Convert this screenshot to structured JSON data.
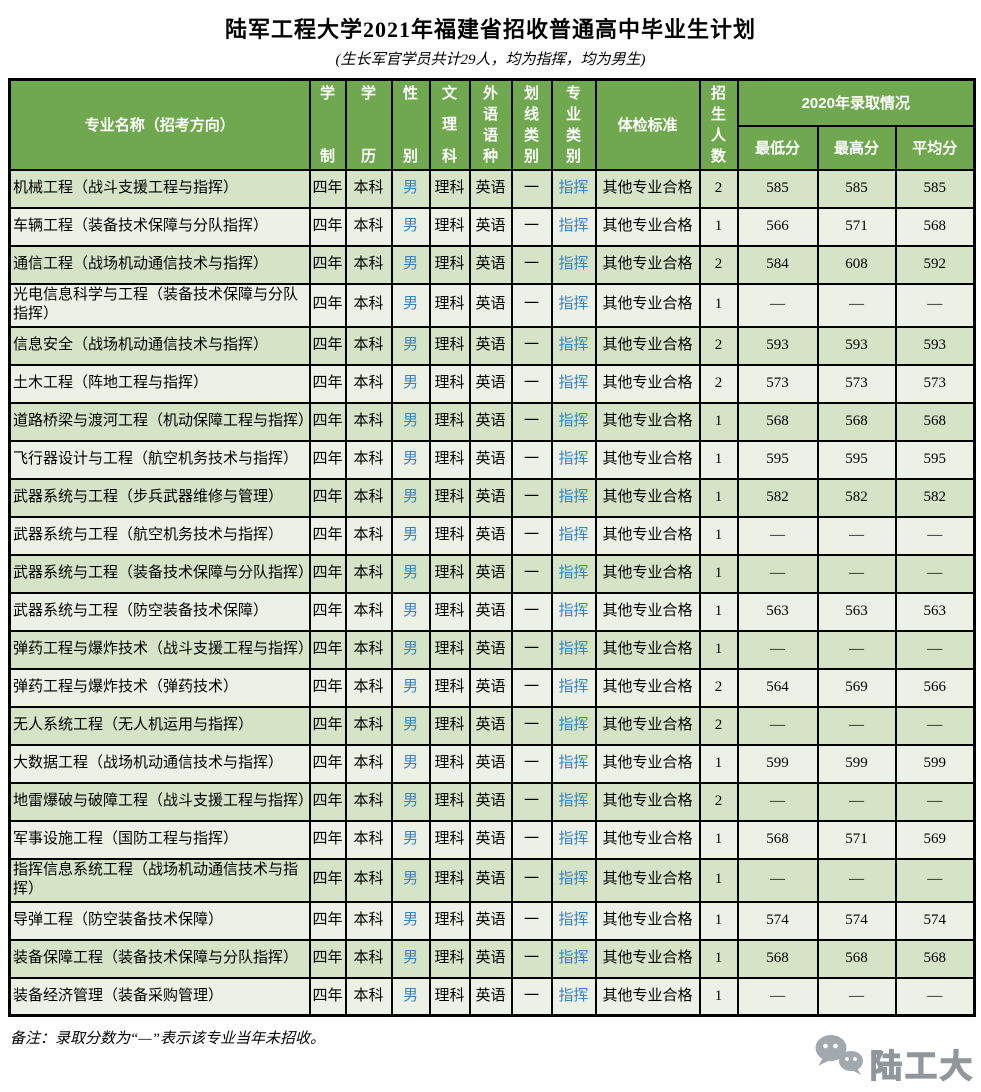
{
  "page": {
    "title": "陆军工程大学2021年福建省招收普通高中毕业生计划",
    "subtitle": "(生长军官学员共计29人，均为指挥，均为男生)",
    "remark": "备注：录取分数为“—”表示该专业当年未招收。",
    "watermark_text": "陆工大"
  },
  "columns": {
    "major": "专业名称（招考方向）",
    "duration": "学制",
    "degree": "学历",
    "gender": "性别",
    "subject": "文理科",
    "language": "外语语种",
    "line_category": "划线类别",
    "major_category": "专业类别",
    "medical": "体检标准",
    "quota": "招生人数",
    "admission_2020": "2020年录取情况",
    "min_score": "最低分",
    "max_score": "最高分",
    "avg_score": "平均分"
  },
  "rows": [
    {
      "major": "机械工程（战斗支援工程与指挥）",
      "duration": "四年",
      "degree": "本科",
      "gender": "男",
      "subject": "理科",
      "language": "英语",
      "line": "一",
      "category": "指挥",
      "medical": "其他专业合格",
      "quota": "2",
      "min": "585",
      "max": "585",
      "avg": "585"
    },
    {
      "major": "车辆工程（装备技术保障与分队指挥）",
      "duration": "四年",
      "degree": "本科",
      "gender": "男",
      "subject": "理科",
      "language": "英语",
      "line": "一",
      "category": "指挥",
      "medical": "其他专业合格",
      "quota": "1",
      "min": "566",
      "max": "571",
      "avg": "568"
    },
    {
      "major": "通信工程（战场机动通信技术与指挥）",
      "duration": "四年",
      "degree": "本科",
      "gender": "男",
      "subject": "理科",
      "language": "英语",
      "line": "一",
      "category": "指挥",
      "medical": "其他专业合格",
      "quota": "2",
      "min": "584",
      "max": "608",
      "avg": "592"
    },
    {
      "major": "光电信息科学与工程（装备技术保障与分队指挥）",
      "duration": "四年",
      "degree": "本科",
      "gender": "男",
      "subject": "理科",
      "language": "英语",
      "line": "一",
      "category": "指挥",
      "medical": "其他专业合格",
      "quota": "1",
      "min": "—",
      "max": "—",
      "avg": "—"
    },
    {
      "major": "信息安全（战场机动通信技术与指挥）",
      "duration": "四年",
      "degree": "本科",
      "gender": "男",
      "subject": "理科",
      "language": "英语",
      "line": "一",
      "category": "指挥",
      "medical": "其他专业合格",
      "quota": "2",
      "min": "593",
      "max": "593",
      "avg": "593"
    },
    {
      "major": "土木工程（阵地工程与指挥）",
      "duration": "四年",
      "degree": "本科",
      "gender": "男",
      "subject": "理科",
      "language": "英语",
      "line": "一",
      "category": "指挥",
      "medical": "其他专业合格",
      "quota": "2",
      "min": "573",
      "max": "573",
      "avg": "573"
    },
    {
      "major": "道路桥梁与渡河工程（机动保障工程与指挥）",
      "duration": "四年",
      "degree": "本科",
      "gender": "男",
      "subject": "理科",
      "language": "英语",
      "line": "一",
      "category": "指挥",
      "medical": "其他专业合格",
      "quota": "1",
      "min": "568",
      "max": "568",
      "avg": "568"
    },
    {
      "major": "飞行器设计与工程（航空机务技术与指挥）",
      "duration": "四年",
      "degree": "本科",
      "gender": "男",
      "subject": "理科",
      "language": "英语",
      "line": "一",
      "category": "指挥",
      "medical": "其他专业合格",
      "quota": "1",
      "min": "595",
      "max": "595",
      "avg": "595"
    },
    {
      "major": "武器系统与工程（步兵武器维修与管理）",
      "duration": "四年",
      "degree": "本科",
      "gender": "男",
      "subject": "理科",
      "language": "英语",
      "line": "一",
      "category": "指挥",
      "medical": "其他专业合格",
      "quota": "1",
      "min": "582",
      "max": "582",
      "avg": "582"
    },
    {
      "major": "武器系统与工程（航空机务技术与指挥）",
      "duration": "四年",
      "degree": "本科",
      "gender": "男",
      "subject": "理科",
      "language": "英语",
      "line": "一",
      "category": "指挥",
      "medical": "其他专业合格",
      "quota": "1",
      "min": "—",
      "max": "—",
      "avg": "—"
    },
    {
      "major": "武器系统与工程（装备技术保障与分队指挥）",
      "duration": "四年",
      "degree": "本科",
      "gender": "男",
      "subject": "理科",
      "language": "英语",
      "line": "一",
      "category": "指挥",
      "medical": "其他专业合格",
      "quota": "1",
      "min": "—",
      "max": "—",
      "avg": "—"
    },
    {
      "major": "武器系统与工程（防空装备技术保障）",
      "duration": "四年",
      "degree": "本科",
      "gender": "男",
      "subject": "理科",
      "language": "英语",
      "line": "一",
      "category": "指挥",
      "medical": "其他专业合格",
      "quota": "1",
      "min": "563",
      "max": "563",
      "avg": "563"
    },
    {
      "major": "弹药工程与爆炸技术（战斗支援工程与指挥）",
      "duration": "四年",
      "degree": "本科",
      "gender": "男",
      "subject": "理科",
      "language": "英语",
      "line": "一",
      "category": "指挥",
      "medical": "其他专业合格",
      "quota": "1",
      "min": "—",
      "max": "—",
      "avg": "—"
    },
    {
      "major": "弹药工程与爆炸技术（弹药技术）",
      "duration": "四年",
      "degree": "本科",
      "gender": "男",
      "subject": "理科",
      "language": "英语",
      "line": "一",
      "category": "指挥",
      "medical": "其他专业合格",
      "quota": "2",
      "min": "564",
      "max": "569",
      "avg": "566"
    },
    {
      "major": "无人系统工程（无人机运用与指挥）",
      "duration": "四年",
      "degree": "本科",
      "gender": "男",
      "subject": "理科",
      "language": "英语",
      "line": "一",
      "category": "指挥",
      "medical": "其他专业合格",
      "quota": "2",
      "min": "—",
      "max": "—",
      "avg": "—"
    },
    {
      "major": "大数据工程（战场机动通信技术与指挥）",
      "duration": "四年",
      "degree": "本科",
      "gender": "男",
      "subject": "理科",
      "language": "英语",
      "line": "一",
      "category": "指挥",
      "medical": "其他专业合格",
      "quota": "1",
      "min": "599",
      "max": "599",
      "avg": "599"
    },
    {
      "major": "地雷爆破与破障工程（战斗支援工程与指挥）",
      "duration": "四年",
      "degree": "本科",
      "gender": "男",
      "subject": "理科",
      "language": "英语",
      "line": "一",
      "category": "指挥",
      "medical": "其他专业合格",
      "quota": "2",
      "min": "—",
      "max": "—",
      "avg": "—"
    },
    {
      "major": "军事设施工程（国防工程与指挥）",
      "duration": "四年",
      "degree": "本科",
      "gender": "男",
      "subject": "理科",
      "language": "英语",
      "line": "一",
      "category": "指挥",
      "medical": "其他专业合格",
      "quota": "1",
      "min": "568",
      "max": "571",
      "avg": "569"
    },
    {
      "major": "指挥信息系统工程（战场机动通信技术与指挥）",
      "duration": "四年",
      "degree": "本科",
      "gender": "男",
      "subject": "理科",
      "language": "英语",
      "line": "一",
      "category": "指挥",
      "medical": "其他专业合格",
      "quota": "1",
      "min": "—",
      "max": "—",
      "avg": "—"
    },
    {
      "major": "导弹工程（防空装备技术保障）",
      "duration": "四年",
      "degree": "本科",
      "gender": "男",
      "subject": "理科",
      "language": "英语",
      "line": "一",
      "category": "指挥",
      "medical": "其他专业合格",
      "quota": "1",
      "min": "574",
      "max": "574",
      "avg": "574"
    },
    {
      "major": "装备保障工程（装备技术保障与分队指挥）",
      "duration": "四年",
      "degree": "本科",
      "gender": "男",
      "subject": "理科",
      "language": "英语",
      "line": "一",
      "category": "指挥",
      "medical": "其他专业合格",
      "quota": "1",
      "min": "568",
      "max": "568",
      "avg": "568"
    },
    {
      "major": "装备经济管理（装备采购管理）",
      "duration": "四年",
      "degree": "本科",
      "gender": "男",
      "subject": "理科",
      "language": "英语",
      "line": "一",
      "category": "指挥",
      "medical": "其他专业合格",
      "quota": "1",
      "min": "—",
      "max": "—",
      "avg": "—"
    }
  ],
  "colors": {
    "header_green": "#6FA84F",
    "row_green": "#D5E3C6",
    "row_light": "#ECF1E5",
    "highlight_blue": "#3B82C4",
    "border_black": "#000000",
    "watermark_gray": "#868E95"
  }
}
